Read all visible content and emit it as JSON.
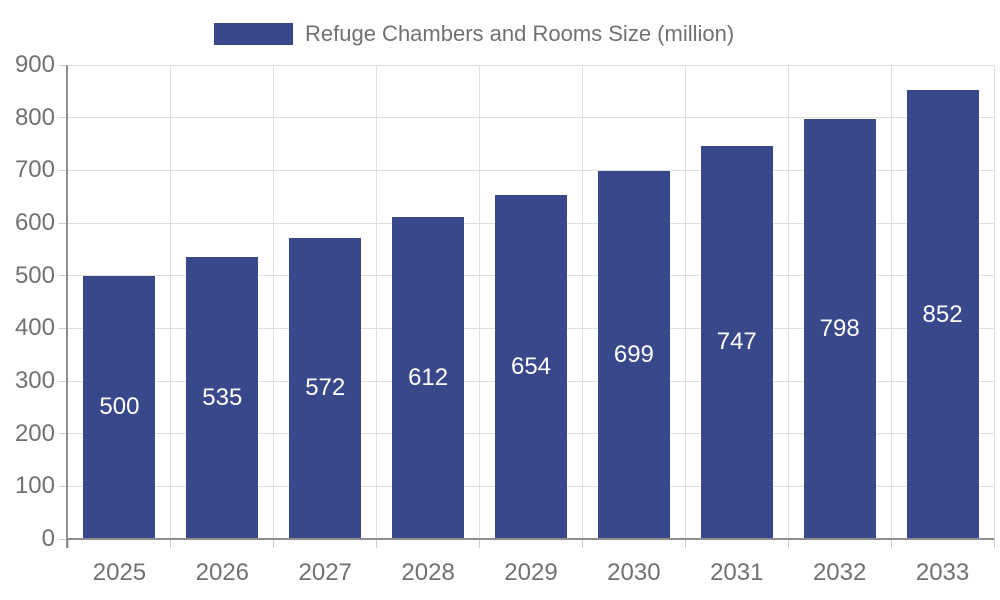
{
  "legend": {
    "label": "Refuge Chambers and Rooms Size (million)"
  },
  "chart_data": {
    "type": "bar",
    "title": "Refuge Chambers and Rooms Size (million)",
    "categories": [
      "2025",
      "2026",
      "2027",
      "2028",
      "2029",
      "2030",
      "2031",
      "2032",
      "2033"
    ],
    "series": [
      {
        "name": "Refuge Chambers and Rooms Size (million)",
        "values": [
          500,
          535,
          572,
          612,
          654,
          699,
          747,
          798,
          852
        ]
      }
    ],
    "xlabel": "",
    "ylabel": "",
    "ylim": [
      0,
      900
    ],
    "yticks": [
      0,
      100,
      200,
      300,
      400,
      500,
      600,
      700,
      800,
      900
    ],
    "grid": true,
    "legend_position": "top",
    "bar_label_position": "inside-center",
    "bar_color": "#39488A",
    "bar_label_color": "#FFFFFF",
    "axis_text_color": "#717171",
    "gridline_color": "#E0E0E0",
    "axis_line_color": "#8F8F8F",
    "tick_color": "#CCCCCC",
    "background_color": "#FFFFFF"
  }
}
